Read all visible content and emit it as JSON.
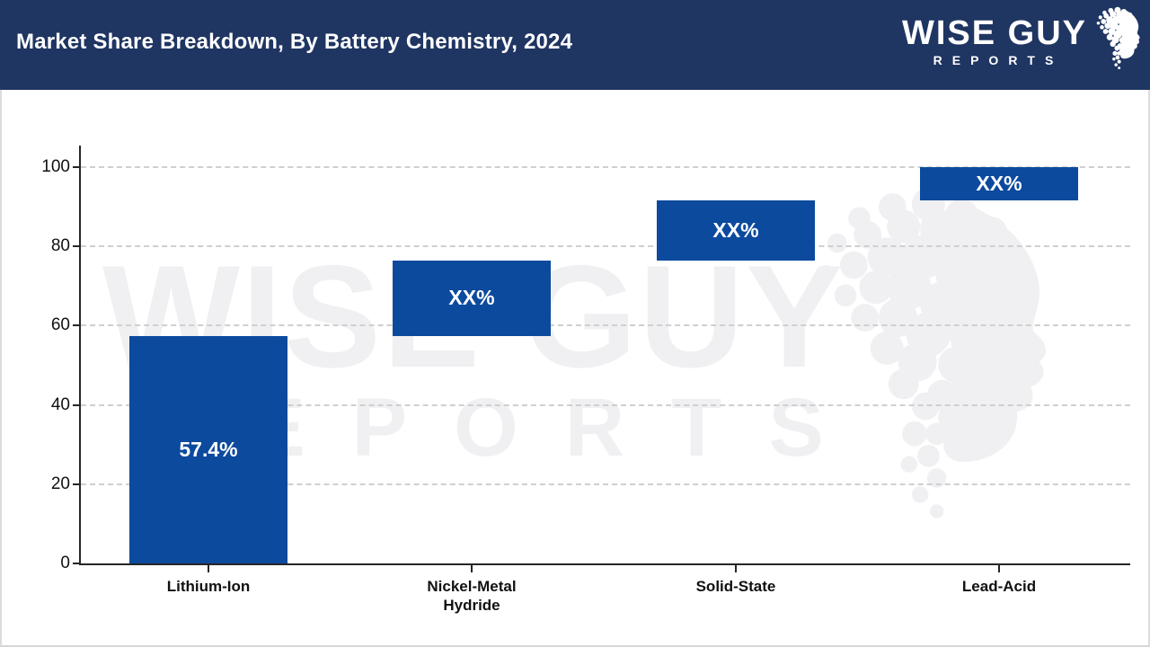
{
  "header": {
    "title": "Market Share Breakdown, By Battery Chemistry, 2024",
    "background": "#1f3562",
    "logo": {
      "name1": "WISE GUY",
      "name2": "REPORTS"
    }
  },
  "watermark": {
    "line1": "WISE GUY",
    "line2": "REPORTS"
  },
  "chart_data": {
    "type": "bar",
    "subtype": "waterfall-cumulative-floating-bars",
    "title": "Market Share Breakdown, By Battery Chemistry, 2024",
    "categories": [
      "Lithium-Ion",
      "Nickel-Metal\nHydride",
      "Solid-State",
      "Lead-Acid"
    ],
    "series": [
      {
        "name": "Market share (%)",
        "segments": [
          {
            "category": "Lithium-Ion",
            "start": 0,
            "end": 57.4,
            "label": "57.4%"
          },
          {
            "category": "Nickel-Metal Hydride",
            "start": 57.4,
            "end": 76.4,
            "label": "XX%"
          },
          {
            "category": "Solid-State",
            "start": 76.4,
            "end": 91.5,
            "label": "XX%"
          },
          {
            "category": "Lead-Acid",
            "start": 91.5,
            "end": 100,
            "label": "XX%"
          }
        ]
      }
    ],
    "ylim": [
      0,
      100
    ],
    "yticks": [
      "0",
      "20",
      "40",
      "60",
      "80",
      "100"
    ],
    "xlabel": "",
    "ylabel": "",
    "grid": "horizontal-dashed",
    "legend": "none",
    "bar_color": "#0c4a9e",
    "bar_label_color": "#ffffff",
    "axis_color": "#262626",
    "gridline_color": "#cfcfcf",
    "watermark_color": "#f0f0f2"
  }
}
